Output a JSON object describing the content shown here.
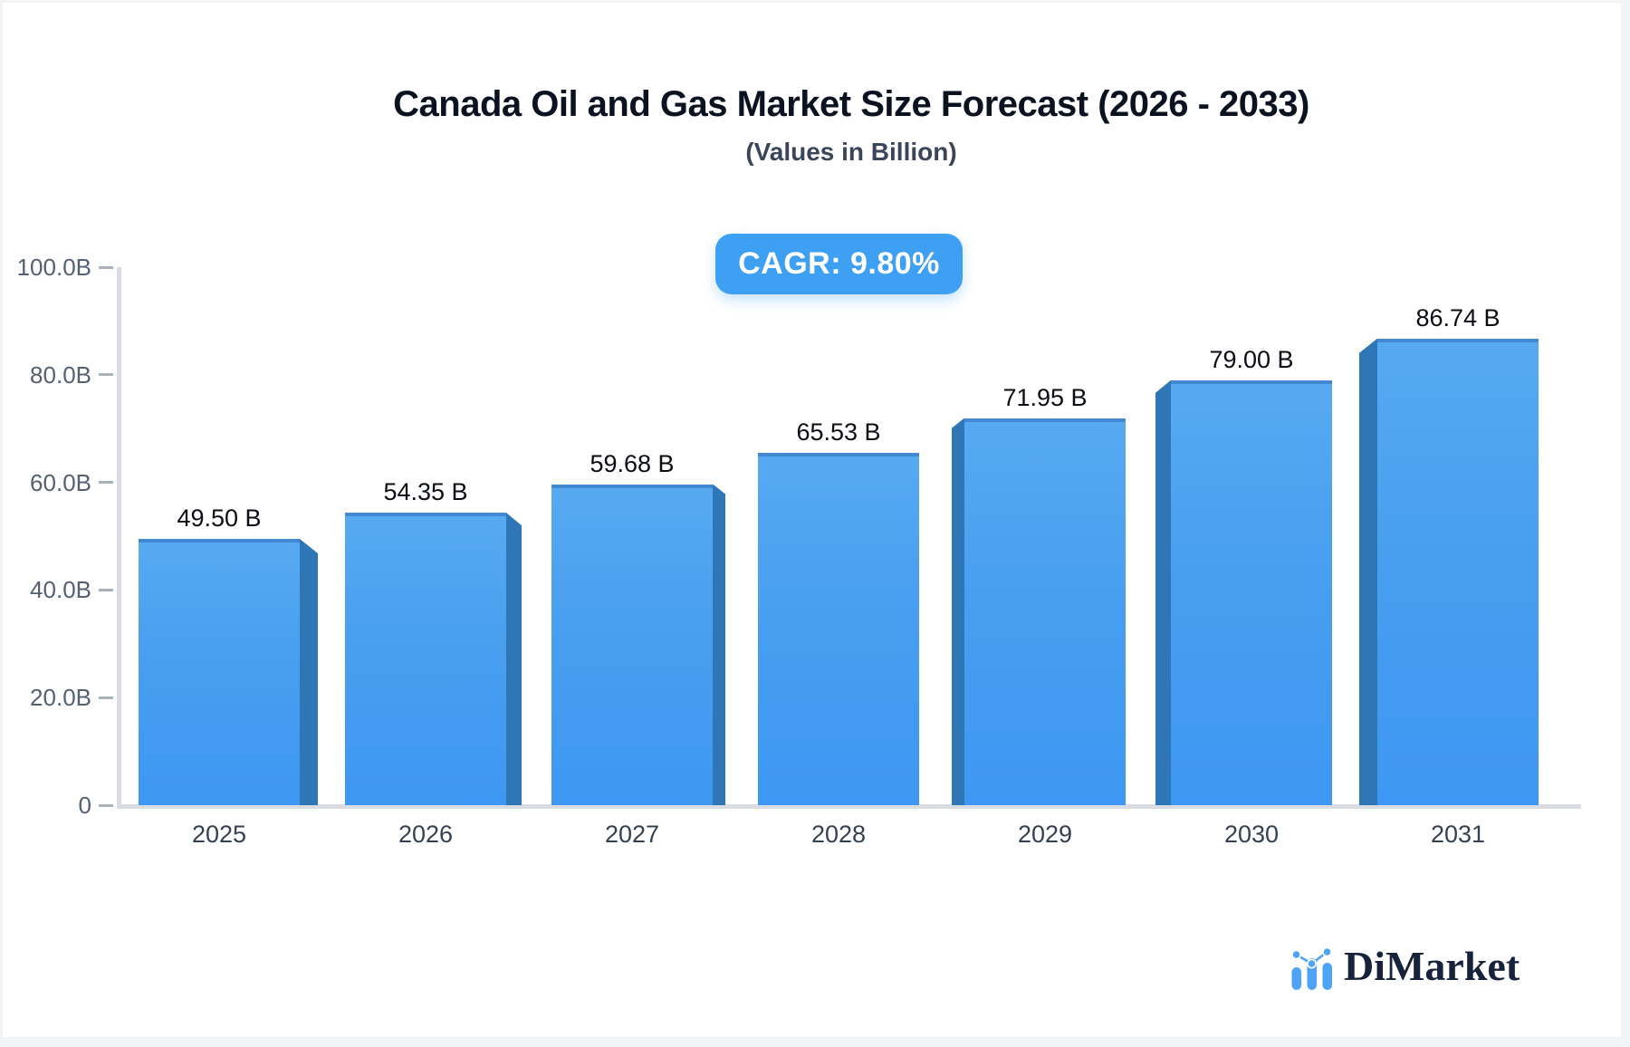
{
  "header": {
    "title": "Canada Oil and Gas Market Size Forecast (2026 - 2033)",
    "subtitle": "(Values in Billion)",
    "cagr_label": "CAGR: 9.80%"
  },
  "branding": {
    "logo_text": "DiMarket"
  },
  "colors": {
    "bar_face_top": "#57a9f1",
    "bar_face_bottom": "#3e97f2",
    "bar_side": "#2e76b5",
    "bar_top_edge": "#4289d1",
    "badge_bg": "#3ea0f2",
    "axis_gray": "#d9dde2",
    "tick_gray": "#a9b1bb",
    "y_label_color": "#556070",
    "x_label_color": "#36414f",
    "value_label_color": "#0a0e13",
    "logo_blue": "#4da3f5",
    "logo_text_color": "#16233a"
  },
  "chart_data": {
    "type": "bar",
    "title": "Canada Oil and Gas Market Size Forecast (2026 - 2033)",
    "subtitle": "(Values in Billion)",
    "annotation": "CAGR: 9.80%",
    "categories": [
      "2025",
      "2026",
      "2027",
      "2028",
      "2029",
      "2030",
      "2031"
    ],
    "values": [
      49.5,
      54.35,
      59.68,
      65.53,
      71.95,
      79.0,
      86.74
    ],
    "value_labels": [
      "49.50 B",
      "54.35 B",
      "59.68 B",
      "65.53 B",
      "71.95 B",
      "79.00 B",
      "86.74 B"
    ],
    "unit": "Billion",
    "ylim": [
      0,
      100
    ],
    "y_tick_values": [
      0,
      20,
      40,
      60,
      80,
      100
    ],
    "y_tick_labels": [
      "0",
      "20.0B",
      "40.0B",
      "60.0B",
      "80.0B",
      "100.0B"
    ],
    "grid": false,
    "legend": "none",
    "bar_style": "3d-beveled"
  }
}
